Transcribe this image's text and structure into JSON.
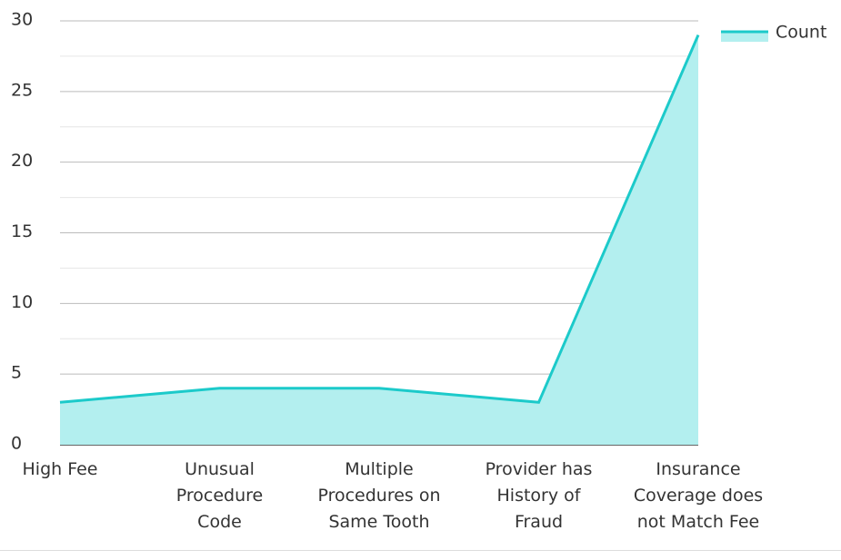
{
  "chart_data": {
    "type": "area",
    "categories": [
      "High Fee",
      "Unusual Procedure Code",
      "Multiple Procedures on Same Tooth",
      "Provider has History of Fraud",
      "Insurance Coverage does not Match Fee"
    ],
    "series": [
      {
        "name": "Count",
        "color": "#1ccaca",
        "fill": "#b3efef",
        "values": [
          3,
          4,
          4,
          3,
          29
        ]
      }
    ],
    "ylim": [
      0,
      30
    ],
    "yticks": [
      0,
      5,
      10,
      15,
      20,
      25,
      30
    ],
    "grid": true,
    "legend": "top-right"
  }
}
